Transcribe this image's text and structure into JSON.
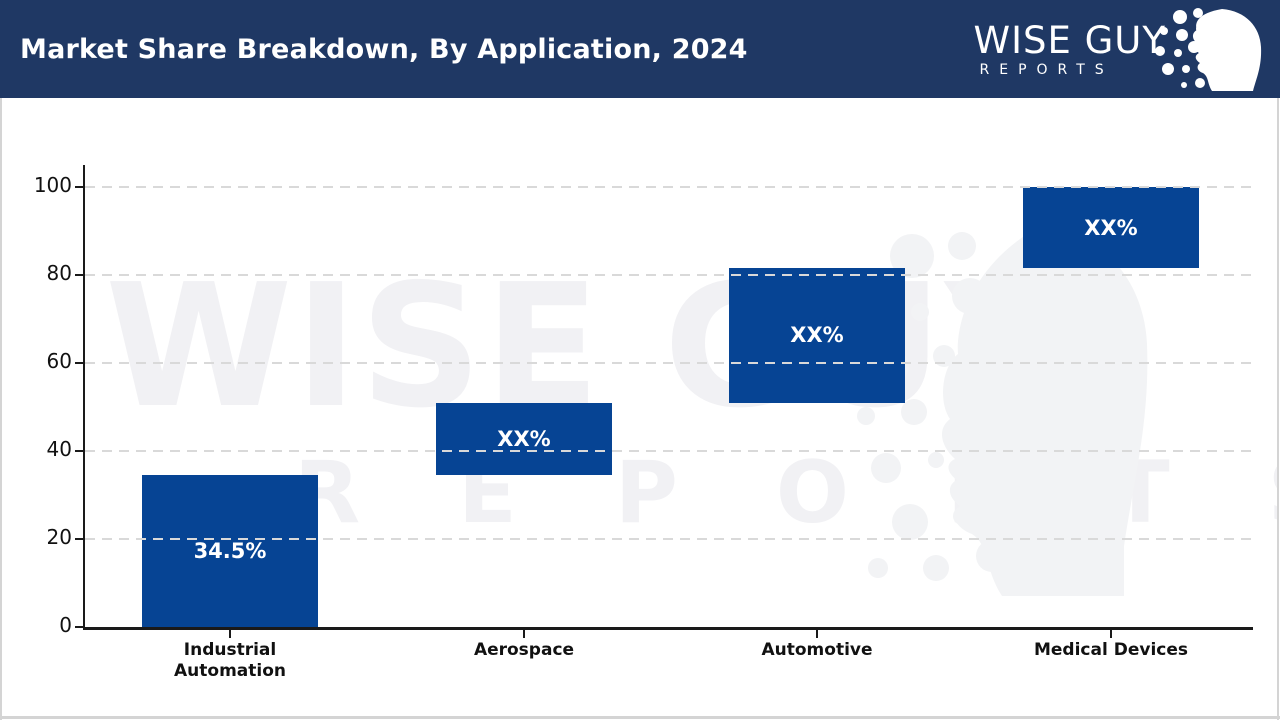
{
  "header": {
    "title": "Market Share Breakdown, By Application, 2024",
    "bg_color": "#1f3864",
    "logo": {
      "line1": "WISE GUY",
      "line2": "REPORTS"
    }
  },
  "watermark": {
    "big_text": "WISE GUY",
    "small_text": "R E P O R T S"
  },
  "chart_data": {
    "type": "bar",
    "subtype": "waterfall",
    "title": "Market Share Breakdown, By Application, 2024",
    "categories": [
      "Industrial\nAutomation",
      "Aerospace",
      "Automotive",
      "Medical Devices"
    ],
    "bars": [
      {
        "category": "Industrial Automation",
        "start": 0,
        "end": 34.5,
        "label": "34.5%"
      },
      {
        "category": "Aerospace",
        "start": 34.5,
        "end": 51,
        "label": "XX%"
      },
      {
        "category": "Automotive",
        "start": 51,
        "end": 81.5,
        "label": "XX%"
      },
      {
        "category": "Medical Devices",
        "start": 81.5,
        "end": 100,
        "label": "XX%"
      }
    ],
    "xlabel": "",
    "ylabel": "",
    "ylim": [
      0,
      100
    ],
    "yticks": [
      0,
      20,
      40,
      60,
      80,
      100
    ],
    "grid": "horizontal-dashed-above-bars",
    "legend": "none",
    "bar_color": "#064494",
    "axis_color": "#1a1a1a",
    "grid_color": "#d9d9d9",
    "label_color": "#ffffff"
  }
}
